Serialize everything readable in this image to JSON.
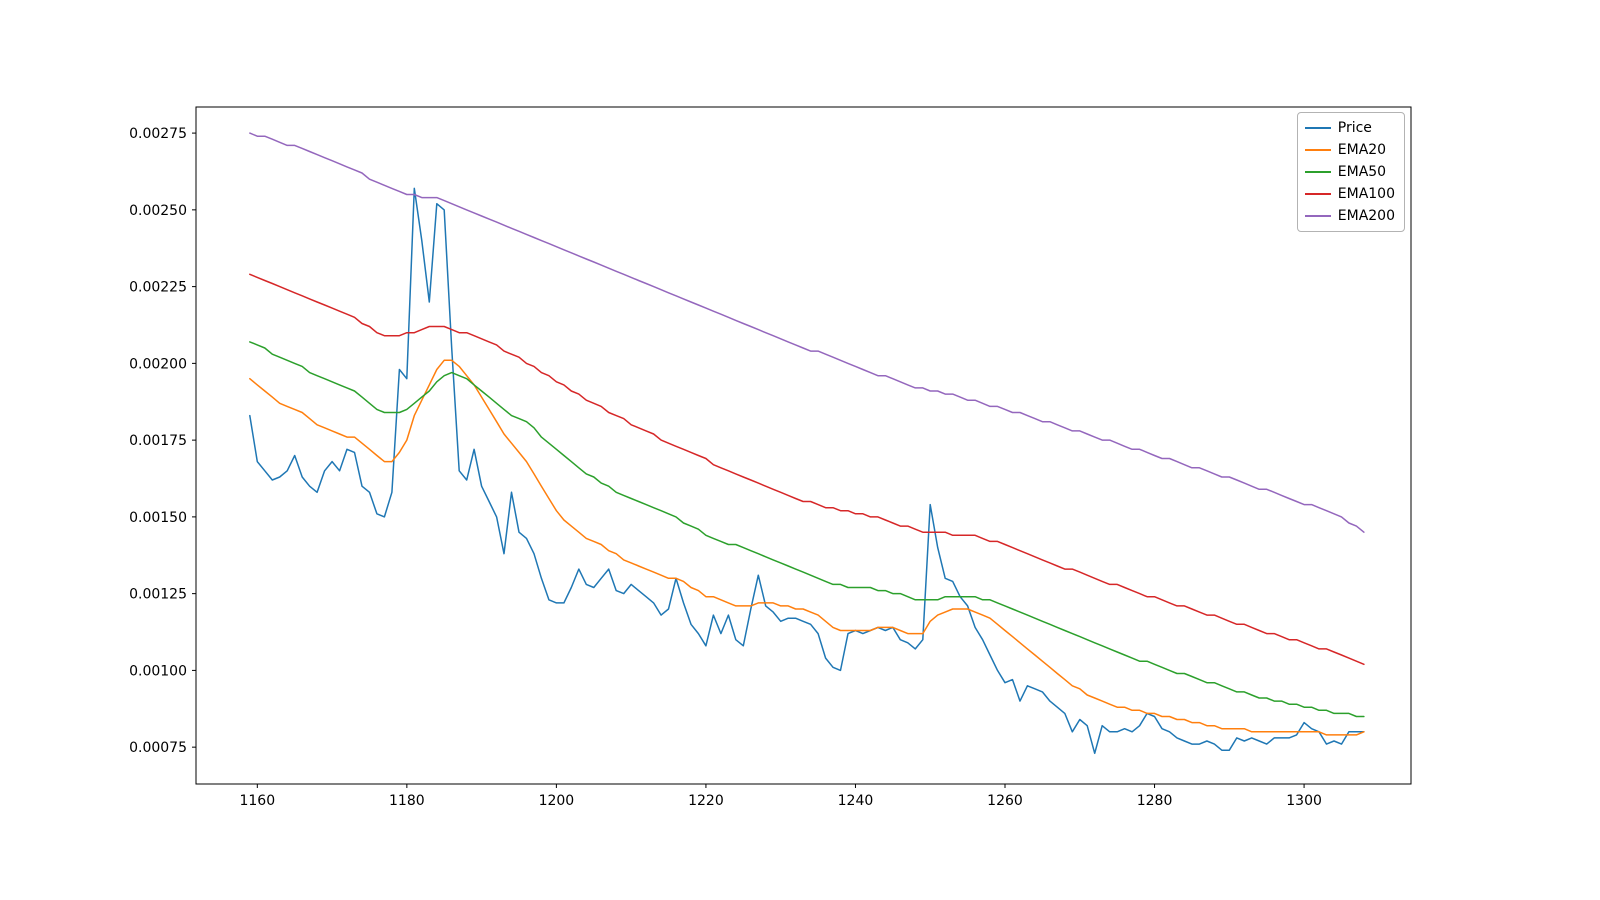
{
  "figure": {
    "background": "#ffffff"
  },
  "chart_data": {
    "type": "line",
    "title": "",
    "xlabel": "",
    "ylabel": "",
    "grid": false,
    "legend_position": "upper right",
    "xlim": [
      1151.8,
      1314.3
    ],
    "ylim": [
      0.00063,
      0.002835
    ],
    "x_ticks": [
      1160,
      1180,
      1200,
      1220,
      1240,
      1260,
      1280,
      1300
    ],
    "x_tick_labels": [
      "1160",
      "1180",
      "1200",
      "1220",
      "1240",
      "1260",
      "1280",
      "1300"
    ],
    "y_ticks": [
      0.00075,
      0.001,
      0.00125,
      0.0015,
      0.00175,
      0.002,
      0.00225,
      0.0025,
      0.00275
    ],
    "y_tick_labels": [
      "0.00075",
      "0.00100",
      "0.00125",
      "0.00150",
      "0.00175",
      "0.00200",
      "0.00225",
      "0.00250",
      "0.00275"
    ],
    "x_start": 1159,
    "x_step": 1,
    "series": [
      {
        "name": "Price",
        "color": "#1f77b4",
        "values": [
          0.00183,
          0.00168,
          0.00165,
          0.00162,
          0.00163,
          0.00165,
          0.0017,
          0.00163,
          0.0016,
          0.00158,
          0.00165,
          0.00168,
          0.00165,
          0.00172,
          0.00171,
          0.0016,
          0.00158,
          0.00151,
          0.0015,
          0.00158,
          0.00198,
          0.00195,
          0.00257,
          0.0024,
          0.0022,
          0.00252,
          0.0025,
          0.00205,
          0.00165,
          0.00162,
          0.00172,
          0.0016,
          0.00155,
          0.0015,
          0.00138,
          0.00158,
          0.00145,
          0.00143,
          0.00138,
          0.0013,
          0.00123,
          0.00122,
          0.00122,
          0.00127,
          0.00133,
          0.00128,
          0.00127,
          0.0013,
          0.00133,
          0.00126,
          0.00125,
          0.00128,
          0.00126,
          0.00124,
          0.00122,
          0.00118,
          0.0012,
          0.0013,
          0.00122,
          0.00115,
          0.00112,
          0.00108,
          0.00118,
          0.00112,
          0.00118,
          0.0011,
          0.00108,
          0.0012,
          0.00131,
          0.00121,
          0.00119,
          0.00116,
          0.00117,
          0.00117,
          0.00116,
          0.00115,
          0.00112,
          0.00104,
          0.00101,
          0.001,
          0.00112,
          0.00113,
          0.00112,
          0.00113,
          0.00114,
          0.00113,
          0.00114,
          0.0011,
          0.00109,
          0.00107,
          0.0011,
          0.00154,
          0.0014,
          0.0013,
          0.00129,
          0.00124,
          0.00121,
          0.00114,
          0.0011,
          0.00105,
          0.001,
          0.00096,
          0.00097,
          0.0009,
          0.00095,
          0.00094,
          0.00093,
          0.0009,
          0.00088,
          0.00086,
          0.0008,
          0.00084,
          0.00082,
          0.00073,
          0.00082,
          0.0008,
          0.0008,
          0.00081,
          0.0008,
          0.00082,
          0.00086,
          0.00085,
          0.00081,
          0.0008,
          0.00078,
          0.00077,
          0.00076,
          0.00076,
          0.00077,
          0.00076,
          0.00074,
          0.00074,
          0.00078,
          0.00077,
          0.00078,
          0.00077,
          0.00076,
          0.00078,
          0.00078,
          0.00078,
          0.00079,
          0.00083,
          0.00081,
          0.0008,
          0.00076,
          0.00077,
          0.00076,
          0.0008,
          0.0008,
          0.0008
        ]
      },
      {
        "name": "EMA20",
        "color": "#ff7f0e",
        "values": [
          0.00195,
          0.00193,
          0.00191,
          0.00189,
          0.00187,
          0.00186,
          0.00185,
          0.00184,
          0.00182,
          0.0018,
          0.00179,
          0.00178,
          0.00177,
          0.00176,
          0.00176,
          0.00174,
          0.00172,
          0.0017,
          0.00168,
          0.00168,
          0.00171,
          0.00175,
          0.00183,
          0.00188,
          0.00193,
          0.00198,
          0.00201,
          0.00201,
          0.00199,
          0.00196,
          0.00193,
          0.00189,
          0.00185,
          0.00181,
          0.00177,
          0.00174,
          0.00171,
          0.00168,
          0.00164,
          0.0016,
          0.00156,
          0.00152,
          0.00149,
          0.00147,
          0.00145,
          0.00143,
          0.00142,
          0.00141,
          0.00139,
          0.00138,
          0.00136,
          0.00135,
          0.00134,
          0.00133,
          0.00132,
          0.00131,
          0.0013,
          0.0013,
          0.00129,
          0.00127,
          0.00126,
          0.00124,
          0.00124,
          0.00123,
          0.00122,
          0.00121,
          0.00121,
          0.00121,
          0.00122,
          0.00122,
          0.00122,
          0.00121,
          0.00121,
          0.0012,
          0.0012,
          0.00119,
          0.00118,
          0.00116,
          0.00114,
          0.00113,
          0.00113,
          0.00113,
          0.00113,
          0.00113,
          0.00114,
          0.00114,
          0.00114,
          0.00113,
          0.00112,
          0.00112,
          0.00112,
          0.00116,
          0.00118,
          0.00119,
          0.0012,
          0.0012,
          0.0012,
          0.00119,
          0.00118,
          0.00117,
          0.00115,
          0.00113,
          0.00111,
          0.00109,
          0.00107,
          0.00105,
          0.00103,
          0.00101,
          0.00099,
          0.00097,
          0.00095,
          0.00094,
          0.00092,
          0.00091,
          0.0009,
          0.00089,
          0.00088,
          0.00088,
          0.00087,
          0.00087,
          0.00086,
          0.00086,
          0.00085,
          0.00085,
          0.00084,
          0.00084,
          0.00083,
          0.00083,
          0.00082,
          0.00082,
          0.00081,
          0.00081,
          0.00081,
          0.00081,
          0.0008,
          0.0008,
          0.0008,
          0.0008,
          0.0008,
          0.0008,
          0.0008,
          0.0008,
          0.0008,
          0.0008,
          0.00079,
          0.00079,
          0.00079,
          0.00079,
          0.00079,
          0.0008
        ]
      },
      {
        "name": "EMA50",
        "color": "#2ca02c",
        "values": [
          0.00207,
          0.00206,
          0.00205,
          0.00203,
          0.00202,
          0.00201,
          0.002,
          0.00199,
          0.00197,
          0.00196,
          0.00195,
          0.00194,
          0.00193,
          0.00192,
          0.00191,
          0.00189,
          0.00187,
          0.00185,
          0.00184,
          0.00184,
          0.00184,
          0.00185,
          0.00187,
          0.00189,
          0.00191,
          0.00194,
          0.00196,
          0.00197,
          0.00196,
          0.00195,
          0.00193,
          0.00191,
          0.00189,
          0.00187,
          0.00185,
          0.00183,
          0.00182,
          0.00181,
          0.00179,
          0.00176,
          0.00174,
          0.00172,
          0.0017,
          0.00168,
          0.00166,
          0.00164,
          0.00163,
          0.00161,
          0.0016,
          0.00158,
          0.00157,
          0.00156,
          0.00155,
          0.00154,
          0.00153,
          0.00152,
          0.00151,
          0.0015,
          0.00148,
          0.00147,
          0.00146,
          0.00144,
          0.00143,
          0.00142,
          0.00141,
          0.00141,
          0.0014,
          0.00139,
          0.00138,
          0.00137,
          0.00136,
          0.00135,
          0.00134,
          0.00133,
          0.00132,
          0.00131,
          0.0013,
          0.00129,
          0.00128,
          0.00128,
          0.00127,
          0.00127,
          0.00127,
          0.00127,
          0.00126,
          0.00126,
          0.00125,
          0.00125,
          0.00124,
          0.00123,
          0.00123,
          0.00123,
          0.00123,
          0.00124,
          0.00124,
          0.00124,
          0.00124,
          0.00124,
          0.00123,
          0.00123,
          0.00122,
          0.00121,
          0.0012,
          0.00119,
          0.00118,
          0.00117,
          0.00116,
          0.00115,
          0.00114,
          0.00113,
          0.00112,
          0.00111,
          0.0011,
          0.00109,
          0.00108,
          0.00107,
          0.00106,
          0.00105,
          0.00104,
          0.00103,
          0.00103,
          0.00102,
          0.00101,
          0.001,
          0.00099,
          0.00099,
          0.00098,
          0.00097,
          0.00096,
          0.00096,
          0.00095,
          0.00094,
          0.00093,
          0.00093,
          0.00092,
          0.00091,
          0.00091,
          0.0009,
          0.0009,
          0.00089,
          0.00089,
          0.00088,
          0.00088,
          0.00087,
          0.00087,
          0.00086,
          0.00086,
          0.00086,
          0.00085,
          0.00085
        ]
      },
      {
        "name": "EMA100",
        "color": "#d62728",
        "values": [
          0.00229,
          0.00228,
          0.00227,
          0.00226,
          0.00225,
          0.00224,
          0.00223,
          0.00222,
          0.00221,
          0.0022,
          0.00219,
          0.00218,
          0.00217,
          0.00216,
          0.00215,
          0.00213,
          0.00212,
          0.0021,
          0.00209,
          0.00209,
          0.00209,
          0.0021,
          0.0021,
          0.00211,
          0.00212,
          0.00212,
          0.00212,
          0.00211,
          0.0021,
          0.0021,
          0.00209,
          0.00208,
          0.00207,
          0.00206,
          0.00204,
          0.00203,
          0.00202,
          0.002,
          0.00199,
          0.00197,
          0.00196,
          0.00194,
          0.00193,
          0.00191,
          0.0019,
          0.00188,
          0.00187,
          0.00186,
          0.00184,
          0.00183,
          0.00182,
          0.0018,
          0.00179,
          0.00178,
          0.00177,
          0.00175,
          0.00174,
          0.00173,
          0.00172,
          0.00171,
          0.0017,
          0.00169,
          0.00167,
          0.00166,
          0.00165,
          0.00164,
          0.00163,
          0.00162,
          0.00161,
          0.0016,
          0.00159,
          0.00158,
          0.00157,
          0.00156,
          0.00155,
          0.00155,
          0.00154,
          0.00153,
          0.00153,
          0.00152,
          0.00152,
          0.00151,
          0.00151,
          0.0015,
          0.0015,
          0.00149,
          0.00148,
          0.00147,
          0.00147,
          0.00146,
          0.00145,
          0.00145,
          0.00145,
          0.00145,
          0.00144,
          0.00144,
          0.00144,
          0.00144,
          0.00143,
          0.00142,
          0.00142,
          0.00141,
          0.0014,
          0.00139,
          0.00138,
          0.00137,
          0.00136,
          0.00135,
          0.00134,
          0.00133,
          0.00133,
          0.00132,
          0.00131,
          0.0013,
          0.00129,
          0.00128,
          0.00128,
          0.00127,
          0.00126,
          0.00125,
          0.00124,
          0.00124,
          0.00123,
          0.00122,
          0.00121,
          0.00121,
          0.0012,
          0.00119,
          0.00118,
          0.00118,
          0.00117,
          0.00116,
          0.00115,
          0.00115,
          0.00114,
          0.00113,
          0.00112,
          0.00112,
          0.00111,
          0.0011,
          0.0011,
          0.00109,
          0.00108,
          0.00107,
          0.00107,
          0.00106,
          0.00105,
          0.00104,
          0.00103,
          0.00102
        ]
      },
      {
        "name": "EMA200",
        "color": "#9467bd",
        "values": [
          0.00275,
          0.00274,
          0.00274,
          0.00273,
          0.00272,
          0.00271,
          0.00271,
          0.0027,
          0.00269,
          0.00268,
          0.00267,
          0.00266,
          0.00265,
          0.00264,
          0.00263,
          0.00262,
          0.0026,
          0.00259,
          0.00258,
          0.00257,
          0.00256,
          0.00255,
          0.00255,
          0.00254,
          0.00254,
          0.00254,
          0.00253,
          0.00252,
          0.00251,
          0.0025,
          0.00249,
          0.00248,
          0.00247,
          0.00246,
          0.00245,
          0.00244,
          0.00243,
          0.00242,
          0.00241,
          0.0024,
          0.00239,
          0.00238,
          0.00237,
          0.00236,
          0.00235,
          0.00234,
          0.00233,
          0.00232,
          0.00231,
          0.0023,
          0.00229,
          0.00228,
          0.00227,
          0.00226,
          0.00225,
          0.00224,
          0.00223,
          0.00222,
          0.00221,
          0.0022,
          0.00219,
          0.00218,
          0.00217,
          0.00216,
          0.00215,
          0.00214,
          0.00213,
          0.00212,
          0.00211,
          0.0021,
          0.00209,
          0.00208,
          0.00207,
          0.00206,
          0.00205,
          0.00204,
          0.00204,
          0.00203,
          0.00202,
          0.00201,
          0.002,
          0.00199,
          0.00198,
          0.00197,
          0.00196,
          0.00196,
          0.00195,
          0.00194,
          0.00193,
          0.00192,
          0.00192,
          0.00191,
          0.00191,
          0.0019,
          0.0019,
          0.00189,
          0.00188,
          0.00188,
          0.00187,
          0.00186,
          0.00186,
          0.00185,
          0.00184,
          0.00184,
          0.00183,
          0.00182,
          0.00181,
          0.00181,
          0.0018,
          0.00179,
          0.00178,
          0.00178,
          0.00177,
          0.00176,
          0.00175,
          0.00175,
          0.00174,
          0.00173,
          0.00172,
          0.00172,
          0.00171,
          0.0017,
          0.00169,
          0.00169,
          0.00168,
          0.00167,
          0.00166,
          0.00166,
          0.00165,
          0.00164,
          0.00163,
          0.00163,
          0.00162,
          0.00161,
          0.0016,
          0.00159,
          0.00159,
          0.00158,
          0.00157,
          0.00156,
          0.00155,
          0.00154,
          0.00154,
          0.00153,
          0.00152,
          0.00151,
          0.0015,
          0.00148,
          0.00147,
          0.00145
        ]
      }
    ]
  }
}
